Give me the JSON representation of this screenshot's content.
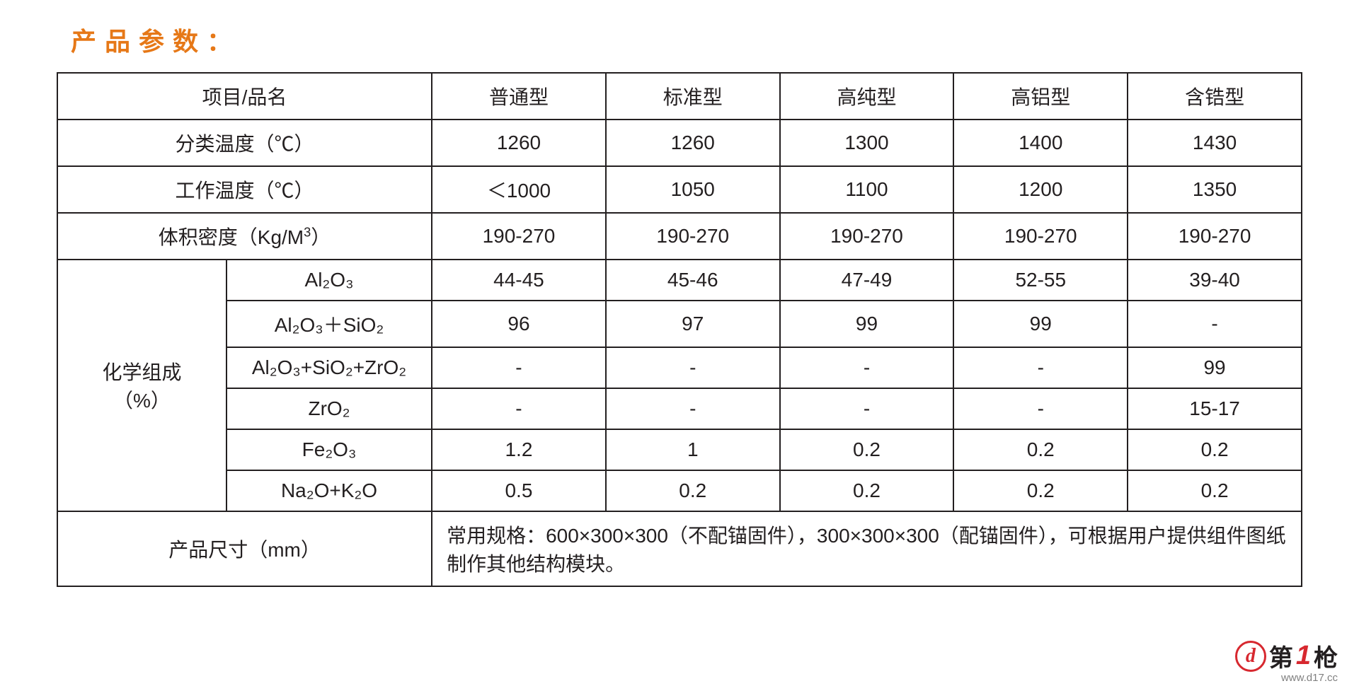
{
  "title": "产品参数",
  "colon": "：",
  "table": {
    "header": {
      "item_name": "项目/品名",
      "types": [
        "普通型",
        "标准型",
        "高纯型",
        "高铝型",
        "含锆型"
      ]
    },
    "rows": {
      "class_temp_label": "分类温度（℃）",
      "class_temp": [
        "1260",
        "1260",
        "1300",
        "1400",
        "1430"
      ],
      "work_temp_label": "工作温度（℃）",
      "work_temp": [
        "＜1000",
        "1050",
        "1100",
        "1200",
        "1350"
      ],
      "bulk_density_label_pre": "体积密度（Kg/M",
      "bulk_density_label_sup": "3",
      "bulk_density_label_post": "）",
      "bulk_density": [
        "190-270",
        "190-270",
        "190-270",
        "190-270",
        "190-270"
      ],
      "chem_label_line1": "化学组成",
      "chem_label_line2": "（%）",
      "chem": [
        {
          "formula": "Al₂O₃",
          "vals": [
            "44-45",
            "45-46",
            "47-49",
            "52-55",
            "39-40"
          ]
        },
        {
          "formula": "Al₂O₃＋SiO₂",
          "vals": [
            "96",
            "97",
            "99",
            "99",
            "-"
          ]
        },
        {
          "formula": "Al₂O₃+SiO₂+ZrO₂",
          "vals": [
            "-",
            "-",
            "-",
            "-",
            "99"
          ]
        },
        {
          "formula": "ZrO₂",
          "vals": [
            "-",
            "-",
            "-",
            "-",
            "15-17"
          ]
        },
        {
          "formula": "Fe₂O₃",
          "vals": [
            "1.2",
            "1",
            "0.2",
            "0.2",
            "0.2"
          ]
        },
        {
          "formula": "Na₂O+K₂O",
          "vals": [
            "0.5",
            "0.2",
            "0.2",
            "0.2",
            "0.2"
          ]
        }
      ],
      "size_label": "产品尺寸（mm）",
      "size_text": "常用规格：600×300×300（不配锚固件），300×300×300（配锚固件），可根据用户提供组件图纸制作其他结构模块。"
    }
  },
  "watermark": {
    "d": "d",
    "di": "第",
    "one": "1",
    "qiang": "枪",
    "url": "www.d17.cc"
  },
  "style": {
    "title_color": "#e67817",
    "border_color": "#231f20",
    "text_color": "#231f20",
    "wm_red": "#d7282f",
    "wm_gray": "#808080"
  }
}
